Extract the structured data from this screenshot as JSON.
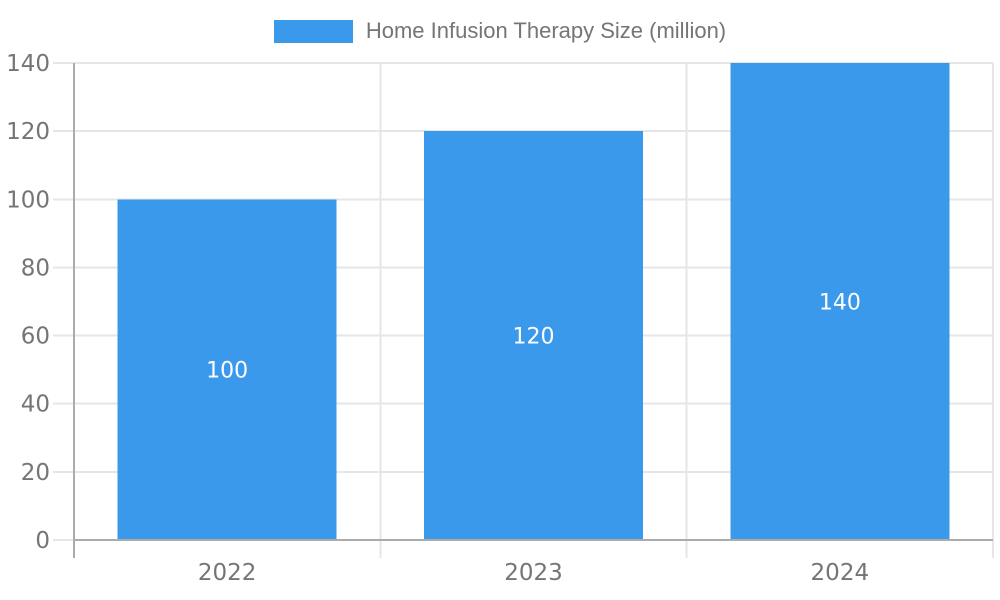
{
  "chart_data": {
    "type": "bar",
    "title": "Home Infusion Therapy Size (million)",
    "legend": {
      "position": "top",
      "label": "Home Infusion Therapy Size (million)"
    },
    "categories": [
      "2022",
      "2023",
      "2024"
    ],
    "series": [
      {
        "name": "Home Infusion Therapy Size (million)",
        "values": [
          100,
          120,
          140
        ]
      }
    ],
    "bar_labels": [
      "100",
      "120",
      "140"
    ],
    "xlabel": "",
    "ylabel": "",
    "ylim": [
      0,
      140
    ],
    "yticks": [
      0,
      20,
      40,
      60,
      80,
      100,
      120,
      140
    ],
    "grid": true,
    "colors": {
      "bar": "#3b99ec",
      "grid": "#e6e6e6",
      "axis": "#ababab",
      "tick_text": "#757575",
      "legend_text": "#757575",
      "bar_label_text": "#ffffff",
      "background": "#ffffff"
    }
  }
}
